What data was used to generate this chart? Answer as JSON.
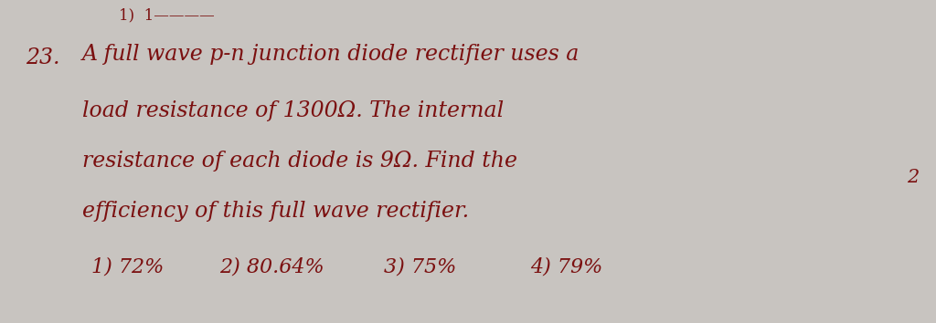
{
  "background_color": "#c8c4c0",
  "text_color": "#7B1010",
  "question_number": "23.",
  "line1": "A full wave p-n junction diode rectifier uses a",
  "line2": "load resistance of 1300Ω. The internal",
  "line3": "resistance of each diode is 9Ω. Find the",
  "line4": "efficiency of this full wave rectifier.",
  "opt1": "1) 72%",
  "opt2": "2) 80.64%",
  "opt3": "3) 75%",
  "opt4": "4) 79%",
  "corner_number": "2",
  "font_size_main": 17,
  "font_size_options": 16,
  "font_size_corner": 15,
  "font_size_top": 12,
  "top_text": "1)  1————"
}
